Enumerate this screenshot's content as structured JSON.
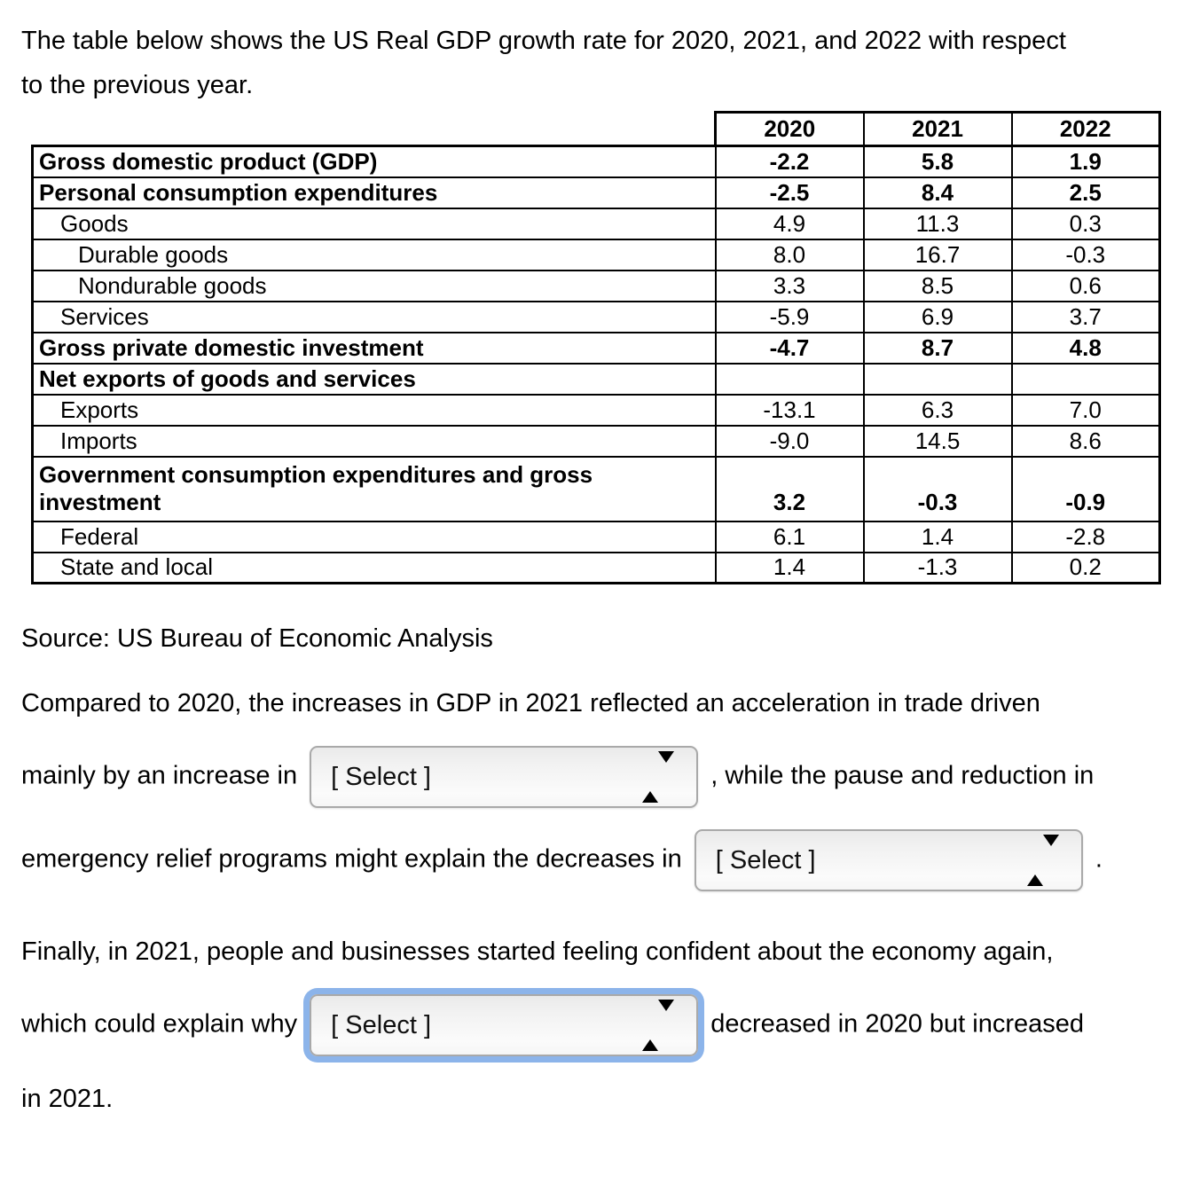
{
  "intro": "The table below shows the US Real GDP growth rate for 2020, 2021, and 2022 with respect\nto the previous year.",
  "table": {
    "col_headers": [
      "2020",
      "2021",
      "2022"
    ],
    "rows": [
      {
        "label": "Gross domestic product (GDP)",
        "indent": 0,
        "bold": true,
        "tall": false,
        "values": [
          "-2.2",
          "5.8",
          "1.9"
        ]
      },
      {
        "label": "Personal consumption expenditures",
        "indent": 0,
        "bold": true,
        "tall": false,
        "values": [
          "-2.5",
          "8.4",
          "2.5"
        ]
      },
      {
        "label": "Goods",
        "indent": 1,
        "bold": false,
        "tall": false,
        "values": [
          "4.9",
          "11.3",
          "0.3"
        ]
      },
      {
        "label": "Durable goods",
        "indent": 2,
        "bold": false,
        "tall": false,
        "values": [
          "8.0",
          "16.7",
          "-0.3"
        ]
      },
      {
        "label": "Nondurable goods",
        "indent": 2,
        "bold": false,
        "tall": false,
        "values": [
          "3.3",
          "8.5",
          "0.6"
        ]
      },
      {
        "label": "Services",
        "indent": 1,
        "bold": false,
        "tall": false,
        "values": [
          "-5.9",
          "6.9",
          "3.7"
        ]
      },
      {
        "label": "Gross private domestic investment",
        "indent": 0,
        "bold": true,
        "tall": false,
        "values": [
          "-4.7",
          "8.7",
          "4.8"
        ]
      },
      {
        "label": "Net exports of goods and services",
        "indent": 0,
        "bold": true,
        "tall": false,
        "values": [
          "",
          "",
          ""
        ]
      },
      {
        "label": "Exports",
        "indent": 1,
        "bold": false,
        "tall": false,
        "values": [
          "-13.1",
          "6.3",
          "7.0"
        ]
      },
      {
        "label": "Imports",
        "indent": 1,
        "bold": false,
        "tall": false,
        "values": [
          "-9.0",
          "14.5",
          "8.6"
        ]
      },
      {
        "label": "Government consumption expenditures and gross investment",
        "indent": 0,
        "bold": true,
        "tall": true,
        "values": [
          "3.2",
          "-0.3",
          "-0.9"
        ]
      },
      {
        "label": "Federal",
        "indent": 1,
        "bold": false,
        "tall": false,
        "values": [
          "6.1",
          "1.4",
          "-2.8"
        ]
      },
      {
        "label": "State and local",
        "indent": 1,
        "bold": false,
        "tall": false,
        "values": [
          "1.4",
          "-1.3",
          "0.2"
        ]
      }
    ]
  },
  "source": "Source: US Bureau of Economic Analysis",
  "paragraph_trade": {
    "part1": "Compared to 2020, the increases in GDP in 2021 reflected an acceleration in trade driven\nmainly by an increase in ",
    "part2": " , while the pause and reduction in\nemergency relief programs might explain the decreases in ",
    "part3": " ."
  },
  "paragraph_confidence": {
    "part1": "Finally, in 2021, people and businesses started feeling confident about the economy again,\nwhich could explain why ",
    "part2": " decreased in 2020 but increased\nin 2021."
  },
  "selects": [
    {
      "label": "[ Select ]"
    },
    {
      "label": "[ Select ]"
    },
    {
      "label": "[ Select ]",
      "focused": true
    }
  ],
  "colors": {
    "focus_ring": "#8cb4ea",
    "table_border": "#000000",
    "select_border": "#a9a9a9"
  }
}
